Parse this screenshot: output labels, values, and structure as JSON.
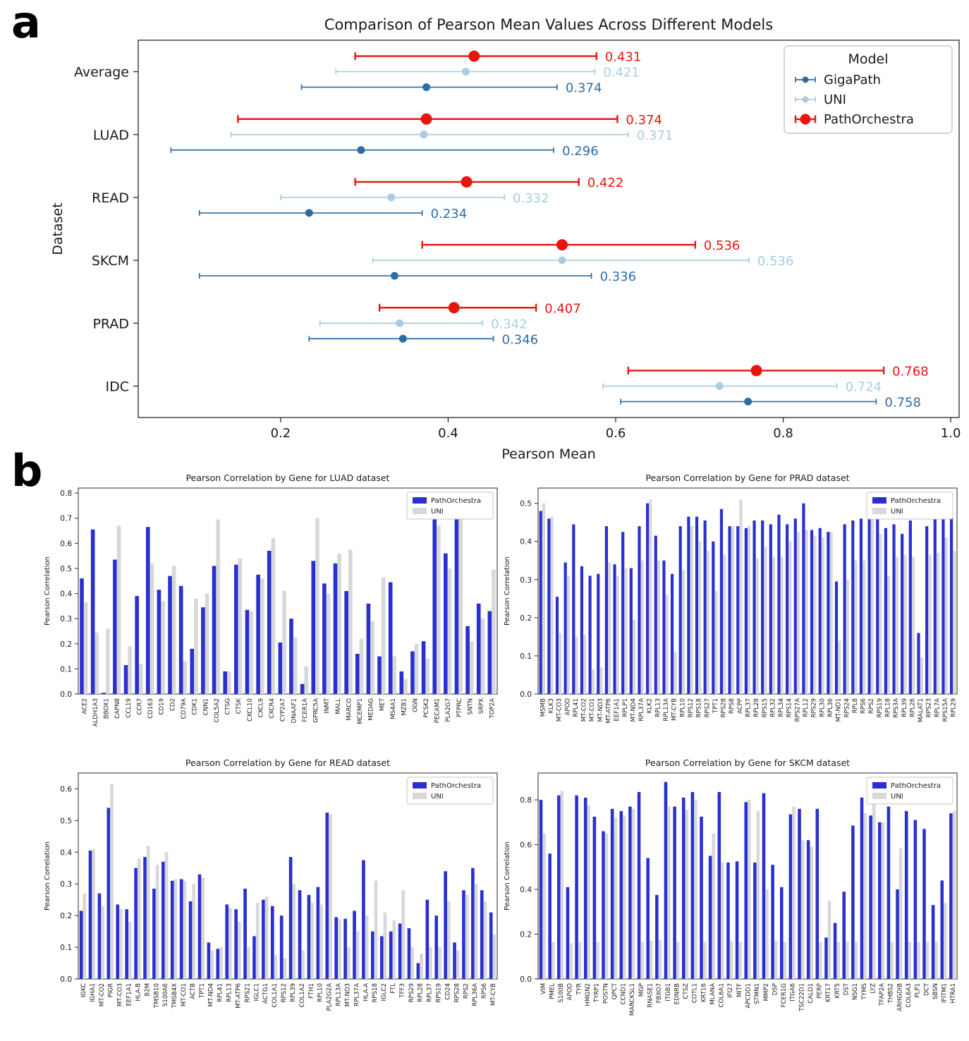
{
  "page": {
    "panel_a_label": "a",
    "panel_b_label": "b"
  },
  "colors": {
    "gigapath": "#2e6da4",
    "uni": "#a9cce3",
    "pathorchestra": "#e8150d",
    "bar_blue": "#2a2fd0",
    "bar_gray": "#d8d8d8",
    "axis": "#2b2b2b"
  },
  "chart_data": [
    {
      "id": "pearson_mean",
      "type": "errorbar",
      "title": "Comparison of Pearson Mean Values Across Different Models",
      "xlabel": "Pearson Mean",
      "ylabel": "Dataset",
      "legend_title": "Model",
      "xlim": [
        0.03,
        1.01
      ],
      "xticks": [
        0.2,
        0.4,
        0.6,
        0.8,
        1.0
      ],
      "categories": [
        "Average",
        "LUAD",
        "READ",
        "SKCM",
        "PRAD",
        "IDC"
      ],
      "series": [
        {
          "name": "GigaPath",
          "color": "#2e6da4",
          "values": [
            0.374,
            0.296,
            0.234,
            0.336,
            0.346,
            0.758
          ],
          "lo": [
            0.225,
            0.069,
            0.103,
            0.103,
            0.234,
            0.606
          ],
          "hi": [
            0.53,
            0.526,
            0.369,
            0.571,
            0.454,
            0.911
          ]
        },
        {
          "name": "UNI",
          "color": "#a9cce3",
          "values": [
            0.421,
            0.371,
            0.332,
            0.536,
            0.342,
            0.724
          ],
          "lo": [
            0.266,
            0.141,
            0.2,
            0.31,
            0.247,
            0.585
          ],
          "hi": [
            0.575,
            0.615,
            0.467,
            0.759,
            0.441,
            0.864
          ]
        },
        {
          "name": "PathOrchestra",
          "color": "#e8150d",
          "values": [
            0.431,
            0.374,
            0.422,
            0.536,
            0.407,
            0.768
          ],
          "lo": [
            0.289,
            0.149,
            0.289,
            0.369,
            0.318,
            0.615
          ],
          "hi": [
            0.577,
            0.602,
            0.556,
            0.695,
            0.505,
            0.92
          ]
        }
      ]
    },
    {
      "id": "luad",
      "type": "bar",
      "title": "Pearson Correlation by Gene for LUAD dataset",
      "ylabel": "Pearson Correlation",
      "ylim": [
        0,
        0.82
      ],
      "yticks": [
        0,
        0.1,
        0.2,
        0.3,
        0.4,
        0.5,
        0.6,
        0.7,
        0.8
      ],
      "categories": [
        "ACE2",
        "ALDH1A3",
        "BBOX1",
        "CAPN8",
        "CCL19",
        "CCR7",
        "CD163",
        "CD19",
        "CD2",
        "CD79A",
        "CDK1",
        "CNN1",
        "COL5A2",
        "CTSG",
        "CTSK",
        "CXCL10",
        "CXCL9",
        "CXCR4",
        "CYP2A7",
        "DNAAF1",
        "FCER1A",
        "GPRC5A",
        "INMT",
        "MALL",
        "MARCO",
        "MCEMP1",
        "MEDAG",
        "MET",
        "MS4A1",
        "MZB1",
        "OGN",
        "PCSK2",
        "PECAM1",
        "PLA2G7",
        "PTPRC",
        "SNTN",
        "SRPX",
        "TOP2A"
      ],
      "series": [
        {
          "name": "PathOrchestra",
          "color": "#2a2fd0",
          "values": [
            0.46,
            0.655,
            0.005,
            0.535,
            0.115,
            0.39,
            0.665,
            0.415,
            0.47,
            0.43,
            0.18,
            0.345,
            0.51,
            0.09,
            0.515,
            0.335,
            0.475,
            0.57,
            0.205,
            0.3,
            0.04,
            0.53,
            0.44,
            0.52,
            0.41,
            0.16,
            0.36,
            0.15,
            0.445,
            0.09,
            0.17,
            0.21,
            0.72,
            0.56,
            0.72,
            0.27,
            0.36,
            0.33
          ]
        },
        {
          "name": "UNI",
          "color": "#d8d8d8",
          "values": [
            0.365,
            0.245,
            0.26,
            0.67,
            0.19,
            0.12,
            0.52,
            0.37,
            0.51,
            0.13,
            0.38,
            0.4,
            0.695,
            0.09,
            0.54,
            0.33,
            0.46,
            0.62,
            0.41,
            0.225,
            0.11,
            0.7,
            0.4,
            0.56,
            0.575,
            0.22,
            0.29,
            0.465,
            0.15,
            0.06,
            0.2,
            0.14,
            0.67,
            0.5,
            0.72,
            0.21,
            0.3,
            0.495
          ]
        }
      ]
    },
    {
      "id": "prad",
      "type": "bar",
      "title": "Pearson Correlation by Gene for PRAD dataset",
      "ylabel": "Pearson Correlation",
      "ylim": [
        0,
        0.54
      ],
      "yticks": [
        0,
        0.1,
        0.2,
        0.3,
        0.4,
        0.5
      ],
      "categories": [
        "MSMB",
        "KLK3",
        "MT-CO3",
        "APOD",
        "RPL41",
        "MT-CO2",
        "MT-CO1",
        "MT-ND3",
        "MT-ATP6",
        "EEF1A1",
        "RPLP1",
        "MT-ND4",
        "RPL37A",
        "KLK2",
        "RPL13",
        "RPL13A",
        "MT-CYB",
        "RPL10",
        "RPS12",
        "RPS18",
        "RPS27",
        "TPT1",
        "RPS28",
        "RPS8",
        "ACPP",
        "RPL37",
        "RPL28",
        "RPS15",
        "RPL32",
        "RPL34",
        "RPS14",
        "RPS27A",
        "RPL12",
        "RPS29",
        "RPL30",
        "RPL36",
        "MT-ND1",
        "RPS24",
        "RPL8",
        "RPS6",
        "RPS2",
        "RPS19",
        "RPL18",
        "RPS3A",
        "RPL39",
        "RPL26",
        "MALAT1",
        "RPS23",
        "RPL7A",
        "RPS15A",
        "RPL29"
      ],
      "series": [
        {
          "name": "PathOrchestra",
          "color": "#2a2fd0",
          "values": [
            0.48,
            0.46,
            0.255,
            0.345,
            0.445,
            0.335,
            0.31,
            0.315,
            0.44,
            0.34,
            0.425,
            0.33,
            0.44,
            0.5,
            0.415,
            0.35,
            0.315,
            0.44,
            0.465,
            0.465,
            0.455,
            0.4,
            0.485,
            0.44,
            0.44,
            0.435,
            0.455,
            0.455,
            0.445,
            0.47,
            0.445,
            0.46,
            0.5,
            0.43,
            0.435,
            0.425,
            0.295,
            0.445,
            0.455,
            0.46,
            0.47,
            0.465,
            0.435,
            0.445,
            0.42,
            0.455,
            0.16,
            0.44,
            0.46,
            0.46,
            0.475
          ]
        },
        {
          "name": "UNI",
          "color": "#d8d8d8",
          "values": [
            0.5,
            0.465,
            0.16,
            0.31,
            0.15,
            0.155,
            0.065,
            0.07,
            0.345,
            0.31,
            0.33,
            0.195,
            0.35,
            0.51,
            0.35,
            0.26,
            0.11,
            0.325,
            0.44,
            0.4,
            0.375,
            0.27,
            0.365,
            0.44,
            0.51,
            0.44,
            0.355,
            0.385,
            0.36,
            0.36,
            0.4,
            0.425,
            0.43,
            0.415,
            0.41,
            0.425,
            0.14,
            0.3,
            0.35,
            0.35,
            0.46,
            0.42,
            0.31,
            0.36,
            0.365,
            0.36,
            0.095,
            0.365,
            0.37,
            0.41,
            0.375
          ]
        }
      ]
    },
    {
      "id": "read",
      "type": "bar",
      "title": "Pearson Correlation by Gene for READ dataset",
      "ylabel": "Pearson Correlation",
      "ylim": [
        0,
        0.65
      ],
      "yticks": [
        0,
        0.1,
        0.2,
        0.3,
        0.4,
        0.5,
        0.6
      ],
      "categories": [
        "IGKC",
        "IGHA1",
        "MT-CO2",
        "PIGR",
        "MT-CO3",
        "EEF1A1",
        "HLA-B",
        "B2M",
        "TMSB10",
        "S100A6",
        "TMSB4X",
        "MT-CO1",
        "ACTB",
        "TPT1",
        "MT-ND4",
        "RPL41",
        "RPL13",
        "MT-ATP6",
        "RPS21",
        "IGLC1",
        "ACTG1",
        "COL1A1",
        "RPS12",
        "RPL39",
        "COL1A2",
        "FTH1",
        "RPL10",
        "PLA2G2A",
        "RPL13A",
        "MT-ND3",
        "RPL37A",
        "HLA-A",
        "RPS18",
        "IGLC2",
        "FTL",
        "TFF3",
        "RPS29",
        "RPL28",
        "RPL37",
        "RPS19",
        "CD24",
        "RPS28",
        "RPS2",
        "RPL36A",
        "RPS6",
        "MT-CYB"
      ],
      "series": [
        {
          "name": "PathOrchestra",
          "color": "#2a2fd0",
          "values": [
            0.215,
            0.405,
            0.27,
            0.54,
            0.235,
            0.22,
            0.35,
            0.385,
            0.285,
            0.37,
            0.31,
            0.315,
            0.245,
            0.33,
            0.115,
            0.095,
            0.235,
            0.22,
            0.285,
            0.135,
            0.25,
            0.23,
            0.2,
            0.385,
            0.28,
            0.265,
            0.29,
            0.525,
            0.195,
            0.19,
            0.215,
            0.375,
            0.15,
            0.135,
            0.15,
            0.175,
            0.16,
            0.05,
            0.25,
            0.2,
            0.34,
            0.115,
            0.28,
            0.35,
            0.28,
            0.21
          ]
        },
        {
          "name": "UNI",
          "color": "#d8d8d8",
          "values": [
            0.27,
            0.41,
            0.23,
            0.615,
            0.22,
            0.18,
            0.38,
            0.42,
            0.36,
            0.4,
            0.315,
            0.31,
            0.3,
            0.32,
            0.09,
            0.1,
            0.225,
            0.18,
            0.1,
            0.24,
            0.26,
            0.075,
            0.065,
            0.3,
            0.09,
            0.24,
            0.235,
            0.52,
            0.19,
            0.1,
            0.15,
            0.2,
            0.31,
            0.21,
            0.185,
            0.28,
            0.1,
            0.08,
            0.1,
            0.1,
            0.245,
            0.09,
            0.265,
            0.3,
            0.245,
            0.14
          ]
        }
      ]
    },
    {
      "id": "skcm",
      "type": "bar",
      "title": "Pearson Correlation by Gene for SKCM dataset",
      "ylabel": "Pearson Correlation",
      "ylim": [
        0,
        0.92
      ],
      "yticks": [
        0,
        0.2,
        0.4,
        0.6,
        0.8
      ],
      "categories": [
        "VIM",
        "PMEL",
        "S100B",
        "APOD",
        "TYR",
        "HMGN2",
        "TYRP1",
        "POSTN",
        "QPCT",
        "CCND1",
        "MARCKSL1",
        "MGP",
        "RNASE1",
        "FBXO7",
        "ITGB1",
        "EDNRB",
        "CTSZ",
        "COTL1",
        "KRT16",
        "MLANA",
        "COL6A1",
        "IFI27",
        "MITF",
        "APCDD1",
        "STMN1",
        "MMP2",
        "DSP",
        "FCER1G",
        "ITGA6",
        "TSC22D1",
        "CALD1",
        "PERP",
        "KRT17",
        "KRT5",
        "DST",
        "NSG1",
        "TYMS",
        "LYZ",
        "TFAP2A",
        "THBS2",
        "ARHGDIB",
        "COL6A3",
        "PLP1",
        "DCT",
        "SBSN",
        "IFITM1",
        "HTRA1"
      ],
      "series": [
        {
          "name": "PathOrchestra",
          "color": "#2a2fd0",
          "values": [
            0.8,
            0.56,
            0.82,
            0.41,
            0.82,
            0.81,
            0.725,
            0.66,
            0.76,
            0.75,
            0.77,
            0.835,
            0.54,
            0.375,
            0.88,
            0.77,
            0.81,
            0.835,
            0.725,
            0.55,
            0.835,
            0.52,
            0.525,
            0.79,
            0.52,
            0.83,
            0.51,
            0.41,
            0.735,
            0.76,
            0.62,
            0.76,
            0.185,
            0.25,
            0.39,
            0.685,
            0.81,
            0.73,
            0.7,
            0.77,
            0.4,
            0.75,
            0.71,
            0.67,
            0.33,
            0.44,
            0.74
          ]
        },
        {
          "name": "UNI",
          "color": "#d8d8d8",
          "values": [
            0.65,
            0.165,
            0.84,
            0.16,
            0.165,
            0.775,
            0.165,
            0.65,
            0.72,
            0.73,
            0.76,
            0.165,
            0.17,
            0.175,
            0.77,
            0.165,
            0.755,
            0.8,
            0.165,
            0.65,
            0.52,
            0.17,
            0.165,
            0.8,
            0.75,
            0.4,
            0.17,
            0.165,
            0.77,
            0.62,
            0.59,
            0.165,
            0.35,
            0.165,
            0.165,
            0.165,
            0.74,
            0.785,
            0.7,
            0.165,
            0.585,
            0.165,
            0.165,
            0.165,
            0.165,
            0.34,
            0.75
          ]
        }
      ]
    }
  ]
}
